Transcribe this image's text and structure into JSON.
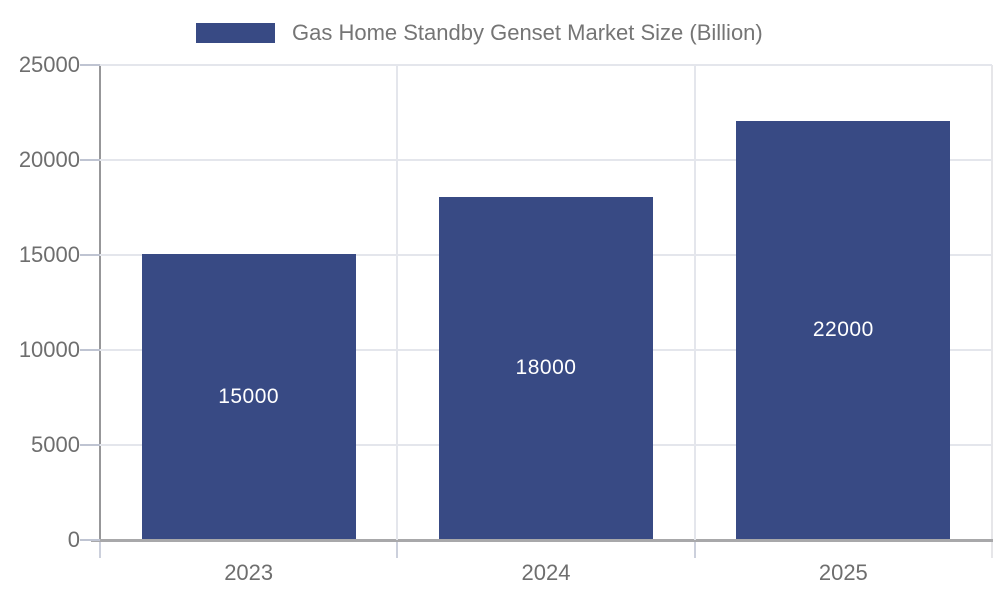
{
  "legend": {
    "label": "Gas Home Standby Genset Market Size (Billion)"
  },
  "colors": {
    "bar": "#384A84",
    "bar_label": "#FFFFFF",
    "legend_text": "#757575",
    "axis_label": "#6E6E6E",
    "background": "#FFFFFF"
  },
  "chart_data": {
    "type": "bar",
    "title": "Gas Home Standby Genset Market Size (Billion)",
    "categories": [
      "2023",
      "2024",
      "2025"
    ],
    "values": [
      15000,
      18000,
      22000
    ],
    "series": [
      {
        "name": "Gas Home Standby Genset Market Size (Billion)",
        "values": [
          15000,
          18000,
          22000
        ]
      }
    ],
    "bar_labels": [
      "15000",
      "18000",
      "22000"
    ],
    "xlabel": "",
    "ylabel": "",
    "ylim": [
      0,
      25000
    ],
    "yticks": [
      0,
      5000,
      10000,
      15000,
      20000,
      25000
    ],
    "grid": true,
    "legend_position": "top-center",
    "bar_label_position": "inside-center"
  }
}
